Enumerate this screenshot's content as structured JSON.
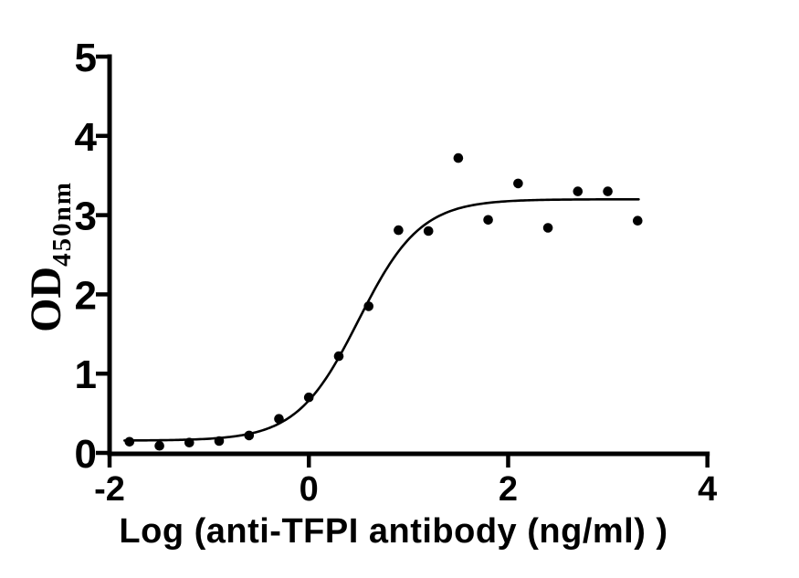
{
  "figure": {
    "background": "#ffffff",
    "ink_color": "#000000"
  },
  "chart_data": {
    "type": "scatter",
    "title": "",
    "xlabel": "Log（anti-TFPI antibody（ng/ml））",
    "ylabel": "OD",
    "ylabel_subscript": "450nm",
    "xlim": [
      -2,
      4
    ],
    "ylim": [
      0,
      5
    ],
    "x_ticks": [
      -2,
      0,
      2,
      4
    ],
    "y_ticks": [
      0,
      1,
      2,
      3,
      4,
      5
    ],
    "grid": false,
    "legend": false,
    "marker": {
      "shape": "circle",
      "radius_px": 5.3,
      "color": "#000000"
    },
    "points": [
      {
        "x": -1.8,
        "y": 0.14
      },
      {
        "x": -1.5,
        "y": 0.09
      },
      {
        "x": -1.2,
        "y": 0.13
      },
      {
        "x": -0.9,
        "y": 0.15
      },
      {
        "x": -0.6,
        "y": 0.22
      },
      {
        "x": -0.3,
        "y": 0.43
      },
      {
        "x": 0.0,
        "y": 0.7
      },
      {
        "x": 0.3,
        "y": 1.22
      },
      {
        "x": 0.6,
        "y": 1.85
      },
      {
        "x": 0.9,
        "y": 2.81
      },
      {
        "x": 1.2,
        "y": 2.8
      },
      {
        "x": 1.5,
        "y": 3.72
      },
      {
        "x": 1.8,
        "y": 2.94
      },
      {
        "x": 2.1,
        "y": 3.4
      },
      {
        "x": 2.4,
        "y": 2.84
      },
      {
        "x": 2.7,
        "y": 3.3
      },
      {
        "x": 3.0,
        "y": 3.3
      },
      {
        "x": 3.3,
        "y": 2.93
      }
    ],
    "fit_curve": {
      "model": "4PL",
      "bottom": 0.155,
      "top": 3.2,
      "logEC50": 0.5,
      "hillslope": 1.4,
      "x_start": -1.85,
      "x_end": 3.31
    }
  }
}
